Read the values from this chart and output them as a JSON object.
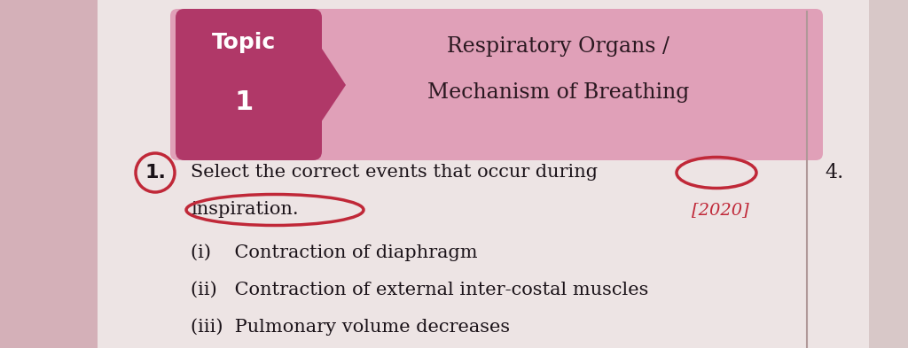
{
  "bg_left": "#d4b0b8",
  "page_bg": "#ddd0d0",
  "paper_bg": "#e8dede",
  "topic_box_dark": "#b03868",
  "topic_box_light": "#e0a0b8",
  "topic_label": "Topic",
  "topic_number": "1",
  "title_line1": "Respiratory Organs /",
  "title_line2": "Mechanism of Breathing",
  "q_number": "1.",
  "q_text_line1": "Select the correct events that occur during",
  "q_text_line2": "inspiration.",
  "year_label": "[2020]",
  "number_4": "4.",
  "item_i": "(i)    Contraction of diaphragm",
  "item_ii": "(ii)   Contraction of external inter-costal muscles",
  "item_iii": "(iii)  Pulmonary volume decreases",
  "circle_color": "#c02838",
  "text_color": "#1a1218",
  "title_color": "#2a1820"
}
